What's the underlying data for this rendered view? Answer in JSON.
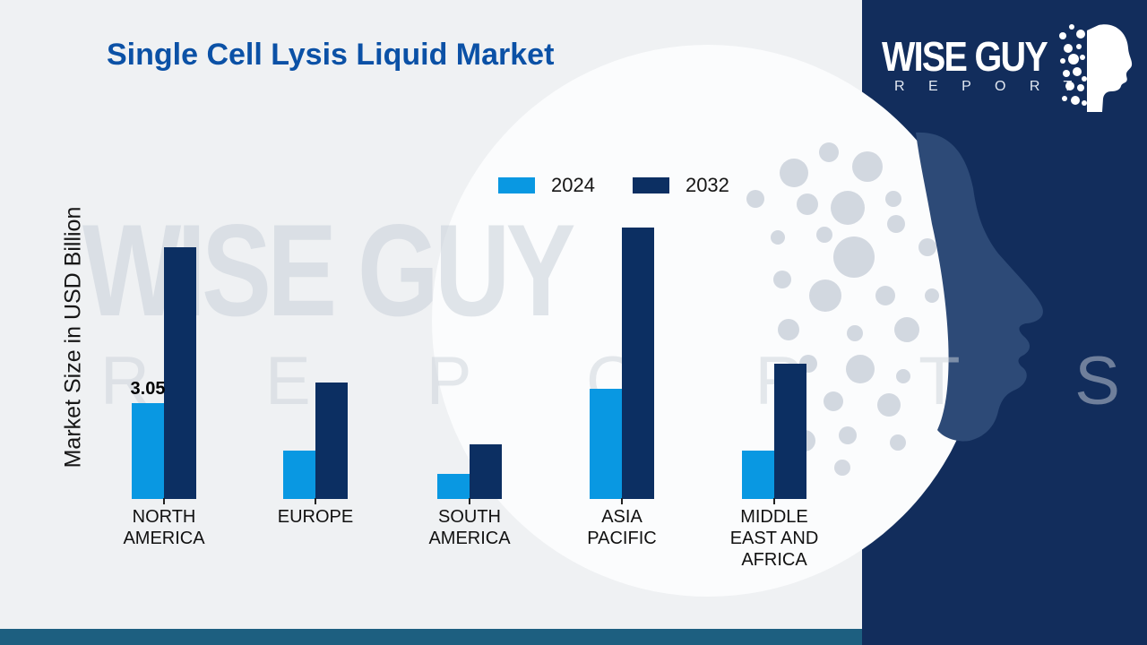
{
  "header": {
    "title": "Single Cell Lysis Liquid Market"
  },
  "axis": {
    "ylabel": "Market Size in USD Billion"
  },
  "legend": [
    {
      "label": "2024",
      "color": "#0998E2"
    },
    {
      "label": "2032",
      "color": "#0C2F62"
    }
  ],
  "logo": {
    "line1": "WISE GUY",
    "line2": "R E P O R T S"
  },
  "watermark": {
    "line1": "WISE GUY",
    "line2": "R E P O R T S"
  },
  "chart_data": {
    "type": "bar",
    "title": "Single Cell Lysis Liquid Market",
    "ylabel": "Market Size in USD Billion",
    "categories": [
      "NORTH AMERICA",
      "EUROPE",
      "SOUTH AMERICA",
      "ASIA PACIFIC",
      "MIDDLE EAST AND AFRICA"
    ],
    "series": [
      {
        "name": "2024",
        "color": "#0998E2",
        "values": [
          3.05,
          1.55,
          0.8,
          3.5,
          1.55
        ]
      },
      {
        "name": "2032",
        "color": "#0C2F62",
        "values": [
          8.0,
          3.7,
          1.75,
          8.65,
          4.3
        ]
      }
    ],
    "value_labels": [
      {
        "category": "NORTH AMERICA",
        "series": "2024",
        "text": "3.05"
      }
    ],
    "ylim": [
      0,
      9
    ],
    "grid": false,
    "legend_position": "top-center"
  },
  "colors": {
    "background": "#eff1f3",
    "panel_navy": "#122D5C",
    "face_silhouette": "#2D4A77",
    "circle_white": "#fbfcfd",
    "bottom_bar_teal": "#1D5F80",
    "title_blue": "#0b51a6",
    "watermark_gray": "#ccd2dc"
  }
}
